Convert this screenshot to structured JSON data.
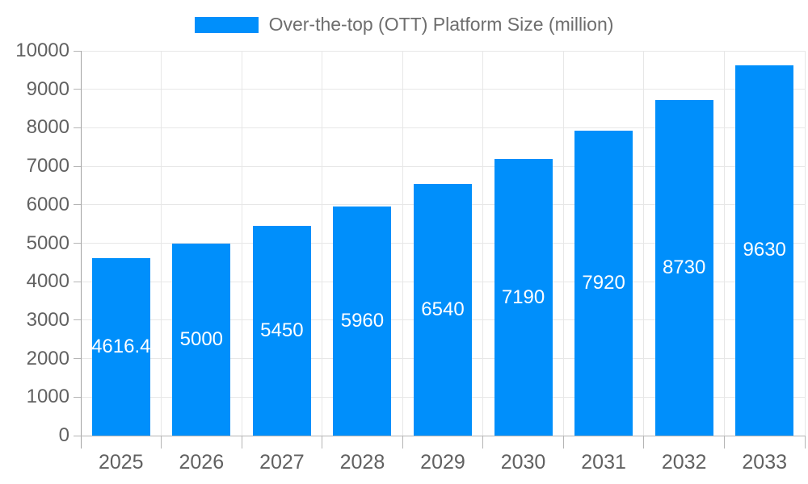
{
  "chart_data": {
    "type": "bar",
    "title": "Over-the-top (OTT) Platform Size (million)",
    "categories": [
      "2025",
      "2026",
      "2027",
      "2028",
      "2029",
      "2030",
      "2031",
      "2032",
      "2033"
    ],
    "series": [
      {
        "name": "Over-the-top (OTT) Platform Size (million)",
        "values": [
          4616.4,
          5000,
          5450,
          5960,
          6540,
          7190,
          7920,
          8730,
          9630
        ]
      }
    ],
    "value_labels": [
      "4616.4",
      "5000",
      "5450",
      "5960",
      "6540",
      "7190",
      "7920",
      "8730",
      "9630"
    ],
    "xlabel": "",
    "ylabel": "",
    "ylim": [
      0,
      10000
    ],
    "y_ticks": [
      0,
      1000,
      2000,
      3000,
      4000,
      5000,
      6000,
      7000,
      8000,
      9000,
      10000
    ],
    "grid": true,
    "legend_position": "top",
    "colors": {
      "bar": "#008FFB",
      "grid": "#e7e7e7",
      "axis_line": "#a3a3a3",
      "tick": "#b5b5b5",
      "baseline": "#b5b5b5",
      "label_text": "#616161",
      "value_label_text": "#ffffff",
      "background": "#ffffff"
    }
  }
}
